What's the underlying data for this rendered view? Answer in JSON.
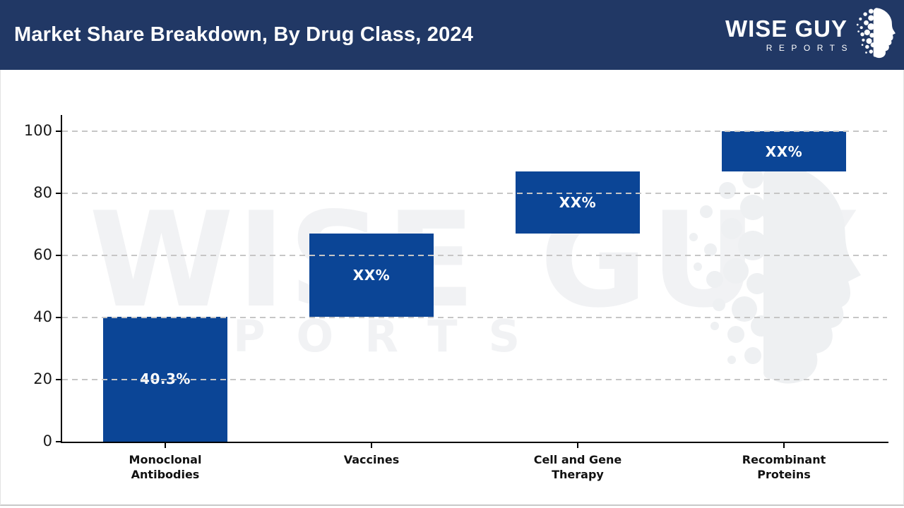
{
  "header": {
    "title": "Market Share Breakdown, By Drug Class, 2024",
    "logo": {
      "name": "WISE GUY",
      "sub": "REPORTS"
    },
    "bg_color": "#213865"
  },
  "watermark": {
    "line1": "WISE GUY",
    "line2": "REPORTS"
  },
  "chart_data": {
    "type": "bar",
    "subtype": "waterfall",
    "title": "Market Share Breakdown, By Drug Class, 2024",
    "categories": [
      "Monoclonal\nAntibodies",
      "Vaccines",
      "Cell and Gene\nTherapy",
      "Recombinant\nProteins"
    ],
    "series": [
      {
        "name": "Market share (%)",
        "segments": [
          {
            "category": "Monoclonal Antibodies",
            "start": 0,
            "end": 40.3,
            "label": "40.3%"
          },
          {
            "category": "Vaccines",
            "start": 40.3,
            "end": 67,
            "label": "XX%"
          },
          {
            "category": "Cell and Gene Therapy",
            "start": 67,
            "end": 87,
            "label": "XX%"
          },
          {
            "category": "Recombinant Proteins",
            "start": 87,
            "end": 100,
            "label": "XX%"
          }
        ]
      }
    ],
    "ylim": [
      0,
      100
    ],
    "yticks": [
      0,
      20,
      40,
      60,
      80,
      100
    ],
    "xlabel": "",
    "ylabel": "",
    "grid": "horizontal-dashed",
    "legend": "none",
    "bar_color": "#0b4596",
    "bar_label_color": "#ffffff",
    "axis_color": "#000000",
    "gridline_color": "#c6c6c6"
  }
}
